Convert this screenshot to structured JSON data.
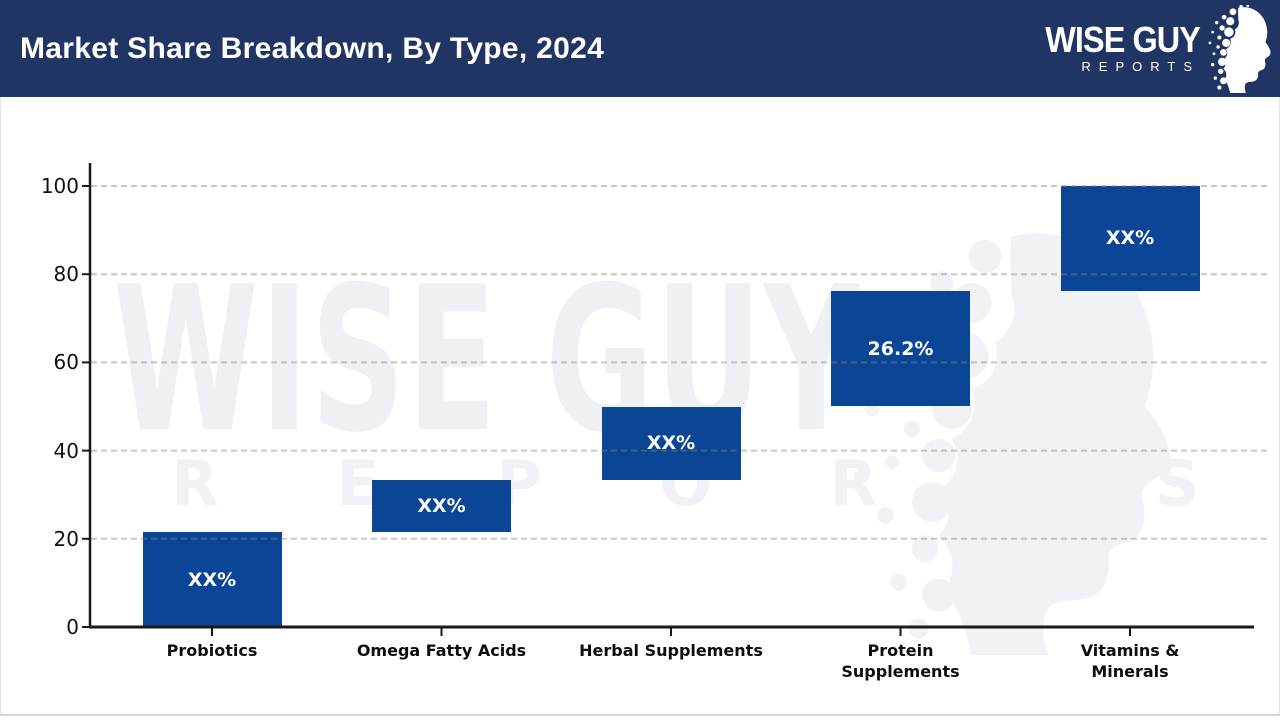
{
  "header": {
    "title": "Market Share Breakdown, By Type, 2024",
    "logo": {
      "name_line": "WISE GUY",
      "sub_line": "REPORTS"
    }
  },
  "watermark": {
    "name_line": "WISE GUY",
    "sub_line": "R E P O R T S"
  },
  "chart_data": {
    "type": "bar",
    "subtype": "waterfall",
    "title": "Market Share Breakdown, By Type, 2024",
    "categories": [
      "Probiotics",
      "Omega Fatty Acids",
      "Herbal Supplements",
      "Protein Supplements",
      "Vitamins & Minerals"
    ],
    "category_lines": [
      [
        "Probiotics"
      ],
      [
        "Omega Fatty Acids"
      ],
      [
        "Herbal Supplements"
      ],
      [
        "Protein",
        "Supplements"
      ],
      [
        "Vitamins &",
        "Minerals"
      ]
    ],
    "series": [
      {
        "name": "Market Share (%)",
        "segments": [
          {
            "category": "Probiotics",
            "label": "XX%",
            "start": 0,
            "end": 21.5
          },
          {
            "category": "Omega Fatty Acids",
            "label": "XX%",
            "start": 21.5,
            "end": 33.4
          },
          {
            "category": "Herbal Supplements",
            "label": "XX%",
            "start": 33.4,
            "end": 50.0
          },
          {
            "category": "Protein Supplements",
            "label": "26.2%",
            "start": 50.0,
            "end": 76.2
          },
          {
            "category": "Vitamins & Minerals",
            "label": "XX%",
            "start": 76.2,
            "end": 100.0
          }
        ]
      }
    ],
    "yticks": [
      0,
      20,
      40,
      60,
      80,
      100
    ],
    "ylim": [
      0,
      100
    ],
    "xlabel": "",
    "ylabel": "",
    "grid": "horizontal-dashed",
    "legend": "none",
    "colors": {
      "bar": "#0b4596",
      "bar_label": "#ffffff",
      "axis": "#1a1a1a",
      "tick_label": "#111111",
      "gridline": "rgba(130,130,130,0.45)",
      "header_bg": "#213564",
      "watermark": "#eff0f4"
    }
  }
}
